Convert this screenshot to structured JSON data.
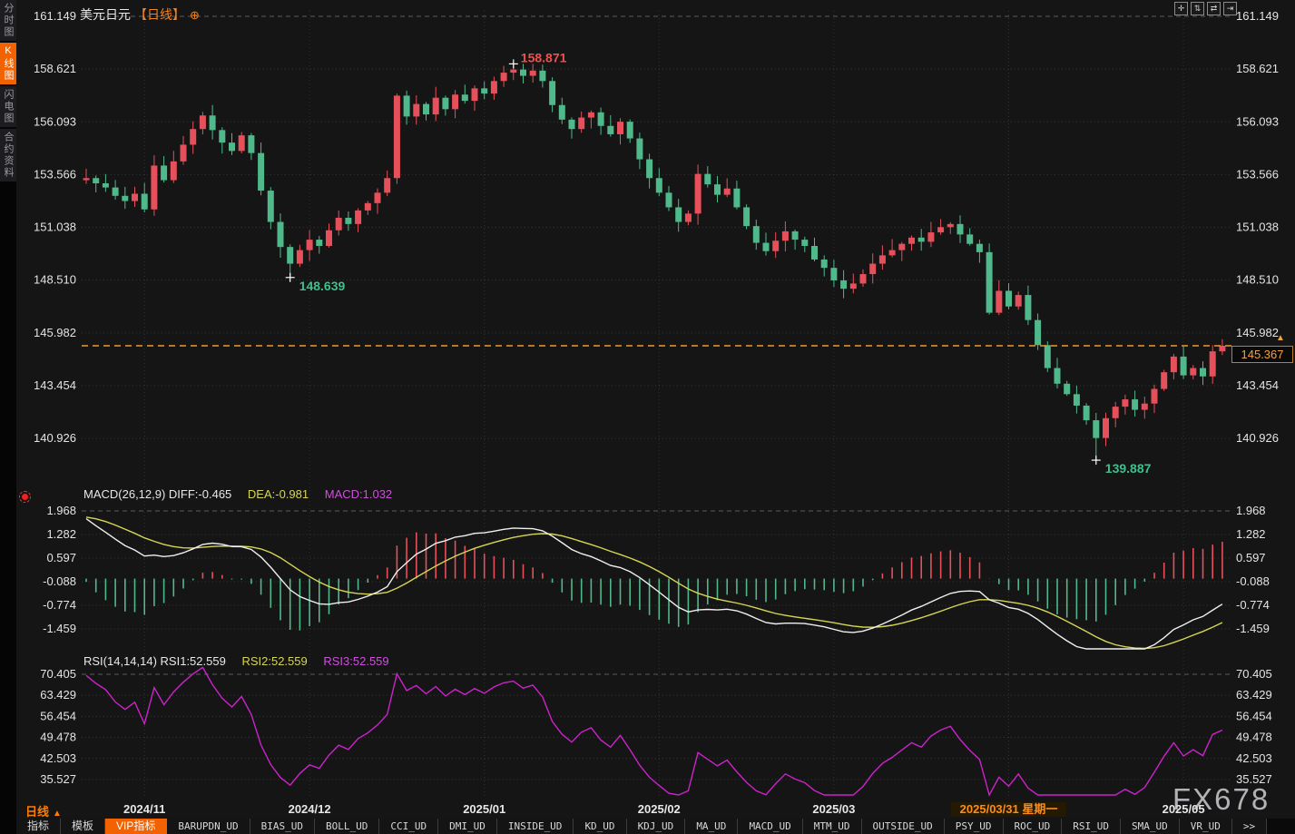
{
  "window": {
    "title_symbol": "美元日元",
    "title_period": "【日线】"
  },
  "icons": {
    "add_circle": "⊕",
    "arrow_up": "▲",
    "move": "✛",
    "zoom_y": "⇅",
    "zoom_x": "⇄",
    "exit": "⇥"
  },
  "sidebar": {
    "items": [
      {
        "label": "分时图",
        "active": false
      },
      {
        "label": "K线图",
        "active": true
      },
      {
        "label": "闪电图",
        "active": false
      },
      {
        "label": "合约资料",
        "active": false
      }
    ]
  },
  "chart_data": {
    "type": "candlestick",
    "title": "美元日元 【日线】",
    "panes": [
      "price",
      "MACD",
      "RSI"
    ],
    "price_ticks": [
      "161.149",
      "158.621",
      "156.093",
      "153.566",
      "151.038",
      "148.510",
      "145.982",
      "143.454",
      "140.926"
    ],
    "x_ticks": [
      {
        "label": "2024/11",
        "index": 6,
        "highlighted": false
      },
      {
        "label": "2024/12",
        "index": 23,
        "highlighted": false
      },
      {
        "label": "2025/01",
        "index": 41,
        "highlighted": false
      },
      {
        "label": "2025/02",
        "index": 59,
        "highlighted": false
      },
      {
        "label": "2025/03",
        "index": 77,
        "highlighted": false
      },
      {
        "label": "2025/03/31 星期一",
        "index": 95,
        "highlighted": true
      },
      {
        "label": "2025/05",
        "index": 113,
        "highlighted": false
      }
    ],
    "open_first": 153.3,
    "closes": [
      153.4,
      153.15,
      152.95,
      152.55,
      152.3,
      152.65,
      151.9,
      154.0,
      153.3,
      154.2,
      155.0,
      155.75,
      156.4,
      155.7,
      155.1,
      154.7,
      155.45,
      154.6,
      152.8,
      151.3,
      150.1,
      149.3,
      149.95,
      150.45,
      150.15,
      150.9,
      151.5,
      151.2,
      151.85,
      152.2,
      152.7,
      153.4,
      157.35,
      156.35,
      156.95,
      156.45,
      157.25,
      156.7,
      157.4,
      157.1,
      157.7,
      157.45,
      158.05,
      158.45,
      158.6,
      158.3,
      158.55,
      158.05,
      156.9,
      156.2,
      155.75,
      156.3,
      156.55,
      155.9,
      155.5,
      156.1,
      155.3,
      154.3,
      153.4,
      152.7,
      152.0,
      151.3,
      151.7,
      153.6,
      153.1,
      152.6,
      152.9,
      152.0,
      151.1,
      150.3,
      149.9,
      150.4,
      150.85,
      150.45,
      150.15,
      149.5,
      149.1,
      148.5,
      148.1,
      148.35,
      148.8,
      149.3,
      149.7,
      149.95,
      150.25,
      150.55,
      150.35,
      150.8,
      151.05,
      151.2,
      150.7,
      150.25,
      149.85,
      146.95,
      148.0,
      147.25,
      147.8,
      146.6,
      145.4,
      144.3,
      143.55,
      143.05,
      142.5,
      141.8,
      140.95,
      141.9,
      142.45,
      142.8,
      142.3,
      142.6,
      143.3,
      144.1,
      144.85,
      143.95,
      144.3,
      143.9,
      145.1,
      145.37
    ],
    "markers": {
      "high": {
        "index": 44,
        "price": 158.871,
        "label": "158.871"
      },
      "low1": {
        "index": 21,
        "price": 148.639,
        "label": "148.639"
      },
      "low2": {
        "index": 104,
        "price": 139.887,
        "label": "139.887"
      }
    },
    "current_price": {
      "value": "145.367",
      "price": 145.367
    },
    "macd": {
      "label_white": "MACD(26,12,9) DIFF:-0.465",
      "label_yellow": "DEA:-0.981",
      "label_magenta": "MACD:1.032",
      "ticks": [
        "1.968",
        "1.282",
        "0.597",
        "-0.088",
        "-0.774",
        "-1.459"
      ]
    },
    "rsi": {
      "label_white": "RSI(14,14,14) RSI1:52.559",
      "label_yellow": "RSI2:52.559",
      "label_magenta": "RSI3:52.559",
      "ticks": [
        "70.405",
        "63.429",
        "56.454",
        "49.478",
        "42.503",
        "35.527"
      ]
    },
    "colors": {
      "up": "#e6505a",
      "down": "#4fb98c",
      "diff_line": "#f0f0f0",
      "dea_line": "#d6d655",
      "rsi_line": "#cc22cc",
      "price_line": "#eb9a38",
      "axis_text": "#e4e4e4",
      "high_label": "#f05050",
      "low_label": "#3fbf8f",
      "tick_highlight": "#ff8c1a"
    }
  },
  "bottom_bar": {
    "interval_label": "日线",
    "tabs": [
      {
        "label": "指标",
        "active": false,
        "mono": false
      },
      {
        "label": "模板",
        "active": false,
        "mono": false
      },
      {
        "label": "VIP指标",
        "active": true,
        "mono": false
      },
      {
        "label": "BARUPDN_UD",
        "active": false,
        "mono": true
      },
      {
        "label": "BIAS_UD",
        "active": false,
        "mono": true
      },
      {
        "label": "BOLL_UD",
        "active": false,
        "mono": true
      },
      {
        "label": "CCI_UD",
        "active": false,
        "mono": true
      },
      {
        "label": "DMI_UD",
        "active": false,
        "mono": true
      },
      {
        "label": "INSIDE_UD",
        "active": false,
        "mono": true
      },
      {
        "label": "KD_UD",
        "active": false,
        "mono": true
      },
      {
        "label": "KDJ_UD",
        "active": false,
        "mono": true
      },
      {
        "label": "MA_UD",
        "active": false,
        "mono": true
      },
      {
        "label": "MACD_UD",
        "active": false,
        "mono": true
      },
      {
        "label": "MTM_UD",
        "active": false,
        "mono": true
      },
      {
        "label": "OUTSIDE_UD",
        "active": false,
        "mono": true
      },
      {
        "label": "PSY_UD",
        "active": false,
        "mono": true
      },
      {
        "label": "ROC_UD",
        "active": false,
        "mono": true
      },
      {
        "label": "RSI_UD",
        "active": false,
        "mono": true
      },
      {
        "label": "SMA_UD",
        "active": false,
        "mono": true
      },
      {
        "label": "VR_UD",
        "active": false,
        "mono": true
      },
      {
        "label": ">>",
        "active": false,
        "mono": true
      }
    ]
  },
  "watermark": "FX678"
}
